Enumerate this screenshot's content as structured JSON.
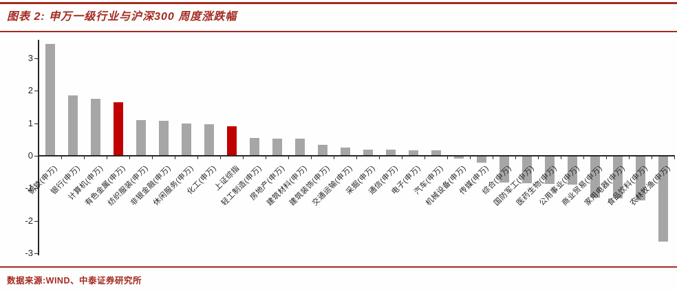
{
  "header": {
    "figure_label": "图表 2:",
    "title": "图表 2:  申万一级行业与沪深300 周度涨跌幅"
  },
  "footer": {
    "source": "数据来源:WIND、中泰证券研究所"
  },
  "theme": {
    "accent_red": "#A32A20",
    "axis_color": "#262626",
    "label_color": "#262626",
    "background": "#fefefe"
  },
  "chart_data": {
    "type": "bar",
    "title": "申万一级行业与沪深300 周度涨跌幅",
    "xlabel": "",
    "ylabel": "",
    "grid": false,
    "legend": null,
    "ylim": [
      -3,
      3.6
    ],
    "yticks": [
      3,
      2,
      1,
      0,
      -1,
      -2,
      -3
    ],
    "bar_color_default": "#A6A6A6",
    "bar_color_highlight": "#C00000",
    "highlighted_categories": [
      "有色金属(申万)",
      "上证综指"
    ],
    "highlight_indices": [
      3,
      8
    ],
    "categories": [
      "钢铁(申万)",
      "银行(申万)",
      "计算机(申万)",
      "有色金属(申万)",
      "纺织服装(申万)",
      "非银金融(申万)",
      "休闲服务(申万)",
      "化工(申万)",
      "上证综指",
      "轻工制造(申万)",
      "房地产(申万)",
      "建筑材料(申万)",
      "建筑装饰(申万)",
      "交通运输(申万)",
      "采掘(申万)",
      "通信(申万)",
      "电子(申万)",
      "汽车(申万)",
      "机械设备(申万)",
      "传媒(申万)",
      "综合(申万)",
      "国防军工(申万)",
      "医药生物(申万)",
      "公用事业(申万)",
      "商业贸易(申万)",
      "家用电器(申万)",
      "食品饮料(申万)",
      "农林牧渔(申万)"
    ],
    "values": [
      3.45,
      1.85,
      1.76,
      1.65,
      1.1,
      1.07,
      1.0,
      0.97,
      0.9,
      0.55,
      0.53,
      0.52,
      0.33,
      0.26,
      0.2,
      0.19,
      0.17,
      0.16,
      -0.08,
      -0.22,
      -0.83,
      -0.85,
      -0.86,
      -0.88,
      -1.28,
      -1.32,
      -1.38,
      -2.65
    ]
  }
}
